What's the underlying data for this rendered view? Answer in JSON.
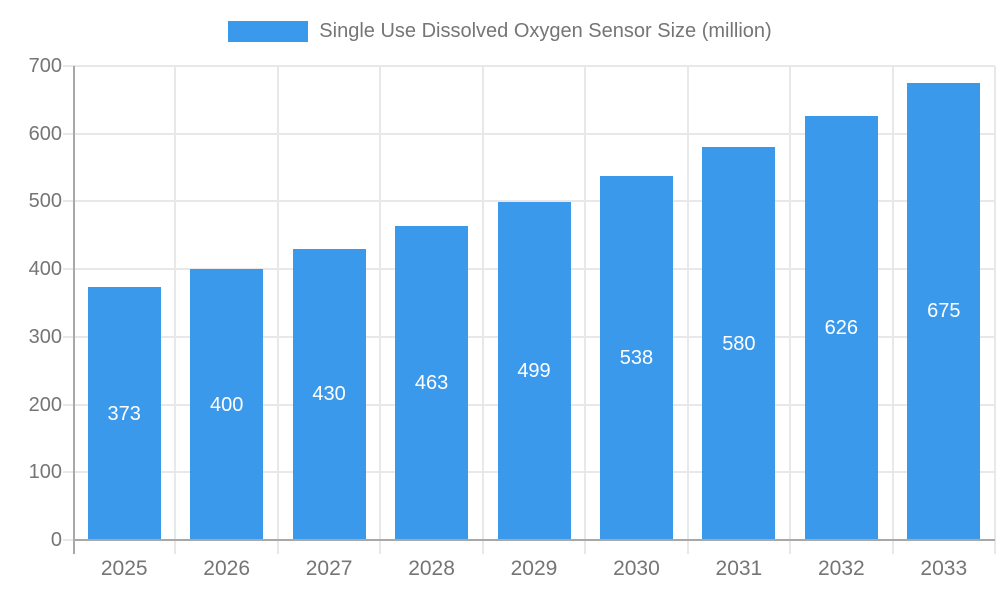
{
  "legend": {
    "label": "Single Use Dissolved Oxygen Sensor Size (million)"
  },
  "chart_data": {
    "type": "bar",
    "title": "Single Use Dissolved Oxygen Sensor Size (million)",
    "categories": [
      "2025",
      "2026",
      "2027",
      "2028",
      "2029",
      "2030",
      "2031",
      "2032",
      "2033"
    ],
    "values": [
      373,
      400,
      430,
      463,
      499,
      538,
      580,
      626,
      675
    ],
    "series_name": "Single Use Dissolved Oxygen Sensor Size (million)",
    "xlabel": "",
    "ylabel": "",
    "ylim": [
      0,
      700
    ],
    "yticks": [
      0,
      100,
      200,
      300,
      400,
      500,
      600,
      700
    ],
    "grid": true,
    "legend_position": "top",
    "bar_label_position": "inside-center",
    "colors": {
      "bar": "#3b99ec",
      "grid_line": "#e8e8e8",
      "axis_line": "#a8a8a8",
      "axis_text": "#757575",
      "bar_label_text": "#ffffff",
      "background": "#ffffff"
    }
  }
}
